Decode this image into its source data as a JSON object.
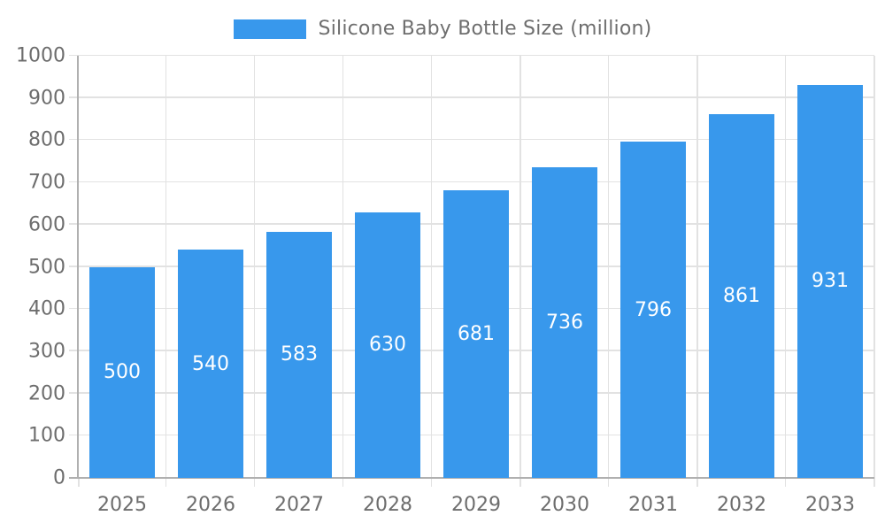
{
  "legend": {
    "label": "Silicone Baby Bottle Size (million)"
  },
  "colors": {
    "bar": "#3898ec",
    "grid_line": "#e2e2e2",
    "axis_line": "#b0b0b0",
    "axis_text": "#6d6d6d",
    "value_label_text": "#ffffff",
    "background": "#ffffff"
  },
  "chart_data": {
    "type": "bar",
    "title": "Silicone Baby Bottle Size (million)",
    "categories": [
      "2025",
      "2026",
      "2027",
      "2028",
      "2029",
      "2030",
      "2031",
      "2032",
      "2033"
    ],
    "series": [
      {
        "name": "Silicone Baby Bottle Size (million)",
        "values": [
          500,
          540,
          583,
          630,
          681,
          736,
          796,
          861,
          931
        ]
      }
    ],
    "value_labels_shown": true,
    "xlabel": "",
    "ylabel": "",
    "ylim": [
      0,
      1000
    ],
    "ytick_step": 100,
    "yticks": [
      0,
      100,
      200,
      300,
      400,
      500,
      600,
      700,
      800,
      900,
      1000
    ],
    "grid": true,
    "grid_orientation": "both",
    "legend_position": "top-center",
    "bar_color": "#3898ec"
  }
}
